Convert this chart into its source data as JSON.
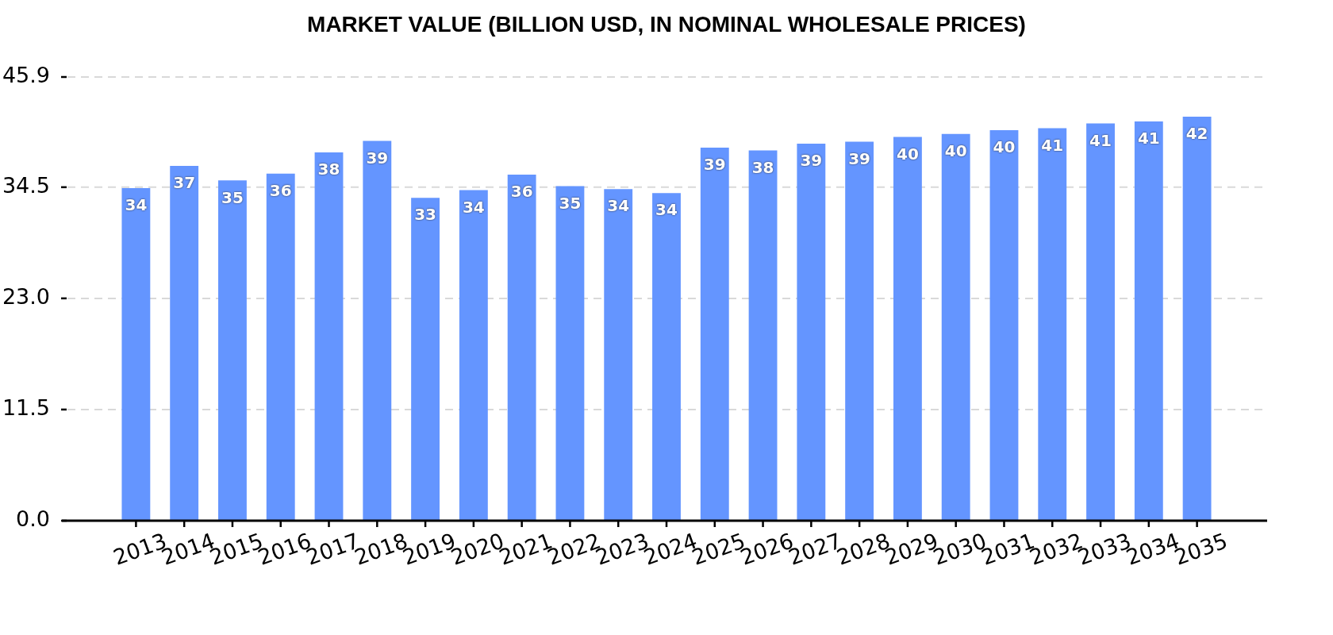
{
  "chart_data": {
    "type": "bar",
    "title": "MARKET VALUE (BILLION USD, IN NOMINAL WHOLESALE PRICES)",
    "categories": [
      "2013",
      "2014",
      "2015",
      "2016",
      "2017",
      "2018",
      "2019",
      "2020",
      "2021",
      "2022",
      "2023",
      "2024",
      "2025",
      "2026",
      "2027",
      "2028",
      "2029",
      "2030",
      "2031",
      "2032",
      "2033",
      "2034",
      "2035"
    ],
    "values": [
      34.4,
      36.7,
      35.2,
      35.9,
      38.1,
      39.3,
      33.4,
      34.2,
      35.8,
      34.6,
      34.3,
      33.9,
      38.6,
      38.3,
      39.0,
      39.2,
      39.7,
      40.0,
      40.4,
      40.6,
      41.1,
      41.3,
      41.8
    ],
    "value_labels": [
      "34",
      "37",
      "35",
      "36",
      "38",
      "39",
      "33",
      "34",
      "36",
      "35",
      "34",
      "34",
      "39",
      "38",
      "39",
      "39",
      "40",
      "40",
      "40",
      "41",
      "41",
      "41",
      "42"
    ],
    "color": "#6495ff",
    "ylim": [
      0,
      45.9
    ],
    "yticks": [
      {
        "value": 0,
        "label": "0.0"
      },
      11.5,
      {
        "value": 23,
        "label": "23.0"
      },
      34.5,
      45.9
    ],
    "grid": "y"
  }
}
